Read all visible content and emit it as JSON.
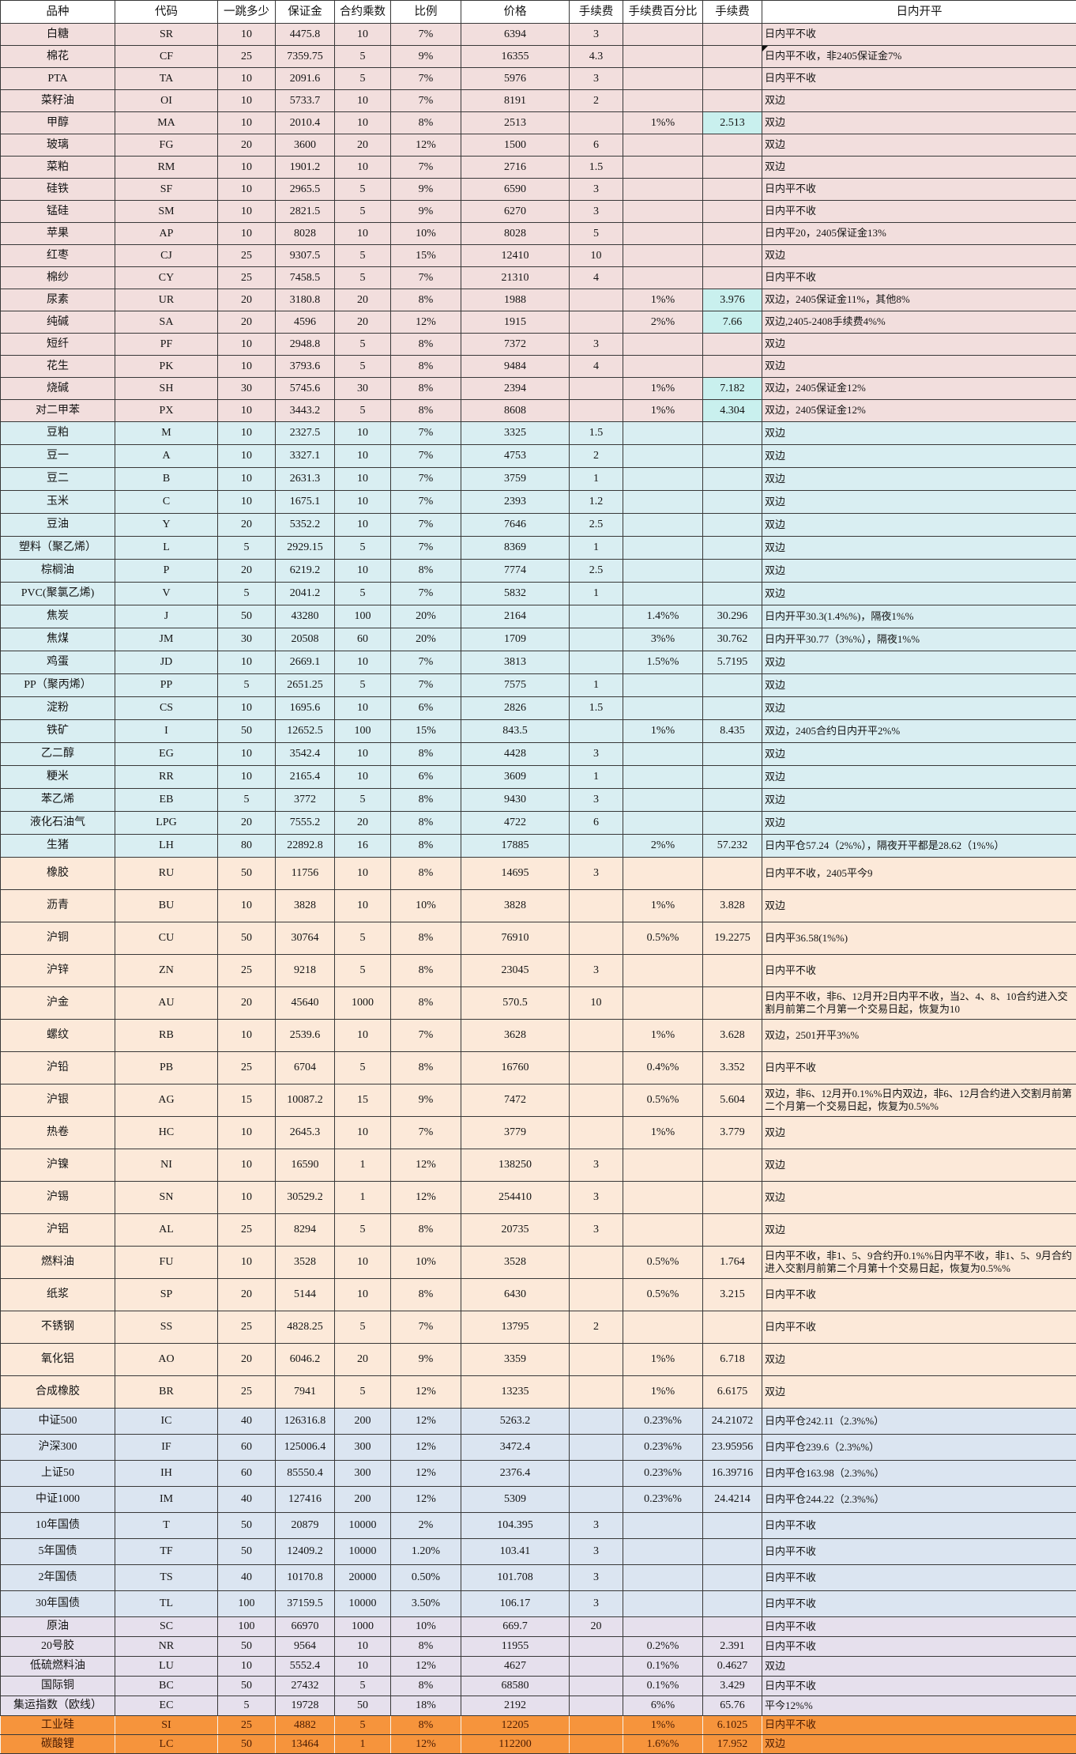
{
  "header": {
    "columns": [
      "品种",
      "代码",
      "一跳多少",
      "保证金",
      "合约乘数",
      "比例",
      "价格",
      "手续费",
      "手续费百分比",
      "手续费",
      "日内开平"
    ]
  },
  "groups": {
    "zce": {
      "bg": "#f2dedd",
      "text": "#141414"
    },
    "dce": {
      "bg": "#d9eef2",
      "text": "#141414"
    },
    "shfe": {
      "bg": "#fce9d9",
      "text": "#141414"
    },
    "cffex": {
      "bg": "#dbe5f1",
      "text": "#141414"
    },
    "ine": {
      "bg": "#e6e0ed",
      "text": "#141414"
    },
    "gfex": {
      "bg": "#f6943c",
      "text": "#4b1c03"
    }
  },
  "highlight_color": "#c9f0ee",
  "rows": [
    {
      "group": "zce",
      "name": "白糖",
      "code": "SR",
      "tick": "10",
      "margin": "4475.8",
      "mult": "10",
      "ratio": "7%",
      "price": "6394",
      "fee": "3",
      "feepct": "",
      "fee2": "",
      "note": "日内平不收"
    },
    {
      "group": "zce",
      "name": "棉花",
      "code": "CF",
      "tick": "25",
      "margin": "7359.75",
      "mult": "5",
      "ratio": "9%",
      "price": "16355",
      "fee": "4.3",
      "feepct": "",
      "fee2": "",
      "note": "日内平不收，非2405保证金7%",
      "marker": true
    },
    {
      "group": "zce",
      "name": "PTA",
      "code": "TA",
      "tick": "10",
      "margin": "2091.6",
      "mult": "5",
      "ratio": "7%",
      "price": "5976",
      "fee": "3",
      "feepct": "",
      "fee2": "",
      "note": "日内平不收"
    },
    {
      "group": "zce",
      "name": "菜籽油",
      "code": "OI",
      "tick": "10",
      "margin": "5733.7",
      "mult": "10",
      "ratio": "7%",
      "price": "8191",
      "fee": "2",
      "feepct": "",
      "fee2": "",
      "note": "双边"
    },
    {
      "group": "zce",
      "name": "甲醇",
      "code": "MA",
      "tick": "10",
      "margin": "2010.4",
      "mult": "10",
      "ratio": "8%",
      "price": "2513",
      "fee": "",
      "feepct": "1%%",
      "fee2": "2.513",
      "hl": true,
      "note": "双边"
    },
    {
      "group": "zce",
      "name": "玻璃",
      "code": "FG",
      "tick": "20",
      "margin": "3600",
      "mult": "20",
      "ratio": "12%",
      "price": "1500",
      "fee": "6",
      "feepct": "",
      "fee2": "",
      "note": "双边"
    },
    {
      "group": "zce",
      "name": "菜粕",
      "code": "RM",
      "tick": "10",
      "margin": "1901.2",
      "mult": "10",
      "ratio": "7%",
      "price": "2716",
      "fee": "1.5",
      "feepct": "",
      "fee2": "",
      "note": "双边"
    },
    {
      "group": "zce",
      "name": "硅铁",
      "code": "SF",
      "tick": "10",
      "margin": "2965.5",
      "mult": "5",
      "ratio": "9%",
      "price": "6590",
      "fee": "3",
      "feepct": "",
      "fee2": "",
      "note": "日内平不收"
    },
    {
      "group": "zce",
      "name": "锰硅",
      "code": "SM",
      "tick": "10",
      "margin": "2821.5",
      "mult": "5",
      "ratio": "9%",
      "price": "6270",
      "fee": "3",
      "feepct": "",
      "fee2": "",
      "note": "日内平不收"
    },
    {
      "group": "zce",
      "name": "苹果",
      "code": "AP",
      "tick": "10",
      "margin": "8028",
      "mult": "10",
      "ratio": "10%",
      "price": "8028",
      "fee": "5",
      "feepct": "",
      "fee2": "",
      "note": "日内平20，2405保证金13%"
    },
    {
      "group": "zce",
      "name": "红枣",
      "code": "CJ",
      "tick": "25",
      "margin": "9307.5",
      "mult": "5",
      "ratio": "15%",
      "price": "12410",
      "fee": "10",
      "feepct": "",
      "fee2": "",
      "note": "双边"
    },
    {
      "group": "zce",
      "name": "棉纱",
      "code": "CY",
      "tick": "25",
      "margin": "7458.5",
      "mult": "5",
      "ratio": "7%",
      "price": "21310",
      "fee": "4",
      "feepct": "",
      "fee2": "",
      "note": "日内平不收"
    },
    {
      "group": "zce",
      "name": "尿素",
      "code": "UR",
      "tick": "20",
      "margin": "3180.8",
      "mult": "20",
      "ratio": "8%",
      "price": "1988",
      "fee": "",
      "feepct": "1%%",
      "fee2": "3.976",
      "hl": true,
      "note": "双边，2405保证金11%，其他8%"
    },
    {
      "group": "zce",
      "name": "纯碱",
      "code": "SA",
      "tick": "20",
      "margin": "4596",
      "mult": "20",
      "ratio": "12%",
      "price": "1915",
      "fee": "",
      "feepct": "2%%",
      "fee2": "7.66",
      "hl": true,
      "note": "双边,2405-2408手续费4%%"
    },
    {
      "group": "zce",
      "name": "短纤",
      "code": "PF",
      "tick": "10",
      "margin": "2948.8",
      "mult": "5",
      "ratio": "8%",
      "price": "7372",
      "fee": "3",
      "feepct": "",
      "fee2": "",
      "note": "双边"
    },
    {
      "group": "zce",
      "name": "花生",
      "code": "PK",
      "tick": "10",
      "margin": "3793.6",
      "mult": "5",
      "ratio": "8%",
      "price": "9484",
      "fee": "4",
      "feepct": "",
      "fee2": "",
      "note": "双边"
    },
    {
      "group": "zce",
      "name": "烧碱",
      "code": "SH",
      "tick": "30",
      "margin": "5745.6",
      "mult": "30",
      "ratio": "8%",
      "price": "2394",
      "fee": "",
      "feepct": "1%%",
      "fee2": "7.182",
      "hl": true,
      "note": "双边，2405保证金12%"
    },
    {
      "group": "zce",
      "name": "对二甲苯",
      "code": "PX",
      "tick": "10",
      "margin": "3443.2",
      "mult": "5",
      "ratio": "8%",
      "price": "8608",
      "fee": "",
      "feepct": "1%%",
      "fee2": "4.304",
      "hl": true,
      "note": "双边，2405保证金12%"
    },
    {
      "group": "dce",
      "name": "豆粕",
      "code": "M",
      "tick": "10",
      "margin": "2327.5",
      "mult": "10",
      "ratio": "7%",
      "price": "3325",
      "fee": "1.5",
      "feepct": "",
      "fee2": "",
      "note": "双边"
    },
    {
      "group": "dce",
      "name": "豆一",
      "code": "A",
      "tick": "10",
      "margin": "3327.1",
      "mult": "10",
      "ratio": "7%",
      "price": "4753",
      "fee": "2",
      "feepct": "",
      "fee2": "",
      "note": "双边"
    },
    {
      "group": "dce",
      "name": "豆二",
      "code": "B",
      "tick": "10",
      "margin": "2631.3",
      "mult": "10",
      "ratio": "7%",
      "price": "3759",
      "fee": "1",
      "feepct": "",
      "fee2": "",
      "note": "双边"
    },
    {
      "group": "dce",
      "name": "玉米",
      "code": "C",
      "tick": "10",
      "margin": "1675.1",
      "mult": "10",
      "ratio": "7%",
      "price": "2393",
      "fee": "1.2",
      "feepct": "",
      "fee2": "",
      "note": "双边"
    },
    {
      "group": "dce",
      "name": "豆油",
      "code": "Y",
      "tick": "20",
      "margin": "5352.2",
      "mult": "10",
      "ratio": "7%",
      "price": "7646",
      "fee": "2.5",
      "feepct": "",
      "fee2": "",
      "note": "双边"
    },
    {
      "group": "dce",
      "name": "塑料（聚乙烯）",
      "code": "L",
      "tick": "5",
      "margin": "2929.15",
      "mult": "5",
      "ratio": "7%",
      "price": "8369",
      "fee": "1",
      "feepct": "",
      "fee2": "",
      "note": "双边"
    },
    {
      "group": "dce",
      "name": "棕榈油",
      "code": "P",
      "tick": "20",
      "margin": "6219.2",
      "mult": "10",
      "ratio": "8%",
      "price": "7774",
      "fee": "2.5",
      "feepct": "",
      "fee2": "",
      "note": "双边"
    },
    {
      "group": "dce",
      "name": "PVC(聚氯乙烯)",
      "code": "V",
      "tick": "5",
      "margin": "2041.2",
      "mult": "5",
      "ratio": "7%",
      "price": "5832",
      "fee": "1",
      "feepct": "",
      "fee2": "",
      "note": "双边"
    },
    {
      "group": "dce",
      "name": "焦炭",
      "code": "J",
      "tick": "50",
      "margin": "43280",
      "mult": "100",
      "ratio": "20%",
      "price": "2164",
      "fee": "",
      "feepct": "1.4%%",
      "fee2": "30.296",
      "note": "日内开平30.3(1.4%%)，隔夜1%%"
    },
    {
      "group": "dce",
      "name": "焦煤",
      "code": "JM",
      "tick": "30",
      "margin": "20508",
      "mult": "60",
      "ratio": "20%",
      "price": "1709",
      "fee": "",
      "feepct": "3%%",
      "fee2": "30.762",
      "note": "日内开平30.77（3%%），隔夜1%%"
    },
    {
      "group": "dce",
      "name": "鸡蛋",
      "code": "JD",
      "tick": "10",
      "margin": "2669.1",
      "mult": "10",
      "ratio": "7%",
      "price": "3813",
      "fee": "",
      "feepct": "1.5%%",
      "fee2": "5.7195",
      "note": "双边"
    },
    {
      "group": "dce",
      "name": "PP（聚丙烯）",
      "code": "PP",
      "tick": "5",
      "margin": "2651.25",
      "mult": "5",
      "ratio": "7%",
      "price": "7575",
      "fee": "1",
      "feepct": "",
      "fee2": "",
      "note": "双边"
    },
    {
      "group": "dce",
      "name": "淀粉",
      "code": "CS",
      "tick": "10",
      "margin": "1695.6",
      "mult": "10",
      "ratio": "6%",
      "price": "2826",
      "fee": "1.5",
      "feepct": "",
      "fee2": "",
      "note": "双边"
    },
    {
      "group": "dce",
      "name": "铁矿",
      "code": "I",
      "tick": "50",
      "margin": "12652.5",
      "mult": "100",
      "ratio": "15%",
      "price": "843.5",
      "fee": "",
      "feepct": "1%%",
      "fee2": "8.435",
      "note": "双边，2405合约日内开平2%%"
    },
    {
      "group": "dce",
      "name": "乙二醇",
      "code": "EG",
      "tick": "10",
      "margin": "3542.4",
      "mult": "10",
      "ratio": "8%",
      "price": "4428",
      "fee": "3",
      "feepct": "",
      "fee2": "",
      "note": "双边"
    },
    {
      "group": "dce",
      "name": "粳米",
      "code": "RR",
      "tick": "10",
      "margin": "2165.4",
      "mult": "10",
      "ratio": "6%",
      "price": "3609",
      "fee": "1",
      "feepct": "",
      "fee2": "",
      "note": "双边"
    },
    {
      "group": "dce",
      "name": "苯乙烯",
      "code": "EB",
      "tick": "5",
      "margin": "3772",
      "mult": "5",
      "ratio": "8%",
      "price": "9430",
      "fee": "3",
      "feepct": "",
      "fee2": "",
      "note": "双边"
    },
    {
      "group": "dce",
      "name": "液化石油气",
      "code": "LPG",
      "tick": "20",
      "margin": "7555.2",
      "mult": "20",
      "ratio": "8%",
      "price": "4722",
      "fee": "6",
      "feepct": "",
      "fee2": "",
      "note": "双边"
    },
    {
      "group": "dce",
      "name": "生猪",
      "code": "LH",
      "tick": "80",
      "margin": "22892.8",
      "mult": "16",
      "ratio": "8%",
      "price": "17885",
      "fee": "",
      "feepct": "2%%",
      "fee2": "57.232",
      "note": "日内平仓57.24（2%%），隔夜开平都是28.62（1%%）"
    },
    {
      "group": "shfe",
      "name": "橡胶",
      "code": "RU",
      "tick": "50",
      "margin": "11756",
      "mult": "10",
      "ratio": "8%",
      "price": "14695",
      "fee": "3",
      "feepct": "",
      "fee2": "",
      "note": "日内平不收，2405平今9"
    },
    {
      "group": "shfe",
      "name": "沥青",
      "code": "BU",
      "tick": "10",
      "margin": "3828",
      "mult": "10",
      "ratio": "10%",
      "price": "3828",
      "fee": "",
      "feepct": "1%%",
      "fee2": "3.828",
      "note": "双边"
    },
    {
      "group": "shfe",
      "name": "沪铜",
      "code": "CU",
      "tick": "50",
      "margin": "30764",
      "mult": "5",
      "ratio": "8%",
      "price": "76910",
      "fee": "",
      "feepct": "0.5%%",
      "fee2": "19.2275",
      "note": "日内平36.58(1%%)"
    },
    {
      "group": "shfe",
      "name": "沪锌",
      "code": "ZN",
      "tick": "25",
      "margin": "9218",
      "mult": "5",
      "ratio": "8%",
      "price": "23045",
      "fee": "3",
      "feepct": "",
      "fee2": "",
      "note": "日内平不收"
    },
    {
      "group": "shfe",
      "name": "沪金",
      "code": "AU",
      "tick": "20",
      "margin": "45640",
      "mult": "1000",
      "ratio": "8%",
      "price": "570.5",
      "fee": "10",
      "feepct": "",
      "fee2": "",
      "note": "日内平不收，非6、12月开2日内平不收，当2、4、8、10合约进入交割月前第二个月第一个交易日起，恢复为10"
    },
    {
      "group": "shfe",
      "name": "螺纹",
      "code": "RB",
      "tick": "10",
      "margin": "2539.6",
      "mult": "10",
      "ratio": "7%",
      "price": "3628",
      "fee": "",
      "feepct": "1%%",
      "fee2": "3.628",
      "note": "双边，2501开平3%%"
    },
    {
      "group": "shfe",
      "name": "沪铅",
      "code": "PB",
      "tick": "25",
      "margin": "6704",
      "mult": "5",
      "ratio": "8%",
      "price": "16760",
      "fee": "",
      "feepct": "0.4%%",
      "fee2": "3.352",
      "note": "日内平不收"
    },
    {
      "group": "shfe",
      "name": "沪银",
      "code": "AG",
      "tick": "15",
      "margin": "10087.2",
      "mult": "15",
      "ratio": "9%",
      "price": "7472",
      "fee": "",
      "feepct": "0.5%%",
      "fee2": "5.604",
      "note": "双边，非6、12月开0.1%%日内双边，非6、12月合约进入交割月前第二个月第一个交易日起，恢复为0.5%%"
    },
    {
      "group": "shfe",
      "name": "热卷",
      "code": "HC",
      "tick": "10",
      "margin": "2645.3",
      "mult": "10",
      "ratio": "7%",
      "price": "3779",
      "fee": "",
      "feepct": "1%%",
      "fee2": "3.779",
      "note": "双边"
    },
    {
      "group": "shfe",
      "name": "沪镍",
      "code": "NI",
      "tick": "10",
      "margin": "16590",
      "mult": "1",
      "ratio": "12%",
      "price": "138250",
      "fee": "3",
      "feepct": "",
      "fee2": "",
      "note": "双边"
    },
    {
      "group": "shfe",
      "name": "沪锡",
      "code": "SN",
      "tick": "10",
      "margin": "30529.2",
      "mult": "1",
      "ratio": "12%",
      "price": "254410",
      "fee": "3",
      "feepct": "",
      "fee2": "",
      "note": "双边"
    },
    {
      "group": "shfe",
      "name": "沪铝",
      "code": "AL",
      "tick": "25",
      "margin": "8294",
      "mult": "5",
      "ratio": "8%",
      "price": "20735",
      "fee": "3",
      "feepct": "",
      "fee2": "",
      "note": "双边"
    },
    {
      "group": "shfe",
      "name": "燃料油",
      "code": "FU",
      "tick": "10",
      "margin": "3528",
      "mult": "10",
      "ratio": "10%",
      "price": "3528",
      "fee": "",
      "feepct": "0.5%%",
      "fee2": "1.764",
      "note": "日内平不收，非1、5、9合约开0.1%%日内平不收，非1、5、9月合约进入交割月前第二个月第十个交易日起，恢复为0.5%%"
    },
    {
      "group": "shfe",
      "name": "纸浆",
      "code": "SP",
      "tick": "20",
      "margin": "5144",
      "mult": "10",
      "ratio": "8%",
      "price": "6430",
      "fee": "",
      "feepct": "0.5%%",
      "fee2": "3.215",
      "note": "日内平不收"
    },
    {
      "group": "shfe",
      "name": "不锈钢",
      "code": "SS",
      "tick": "25",
      "margin": "4828.25",
      "mult": "5",
      "ratio": "7%",
      "price": "13795",
      "fee": "2",
      "feepct": "",
      "fee2": "",
      "note": "日内平不收"
    },
    {
      "group": "shfe",
      "name": "氧化铝",
      "code": "AO",
      "tick": "20",
      "margin": "6046.2",
      "mult": "20",
      "ratio": "9%",
      "price": "3359",
      "fee": "",
      "feepct": "1%%",
      "fee2": "6.718",
      "note": "双边"
    },
    {
      "group": "shfe",
      "name": "合成橡胶",
      "code": "BR",
      "tick": "25",
      "margin": "7941",
      "mult": "5",
      "ratio": "12%",
      "price": "13235",
      "fee": "",
      "feepct": "1%%",
      "fee2": "6.6175",
      "note": "双边"
    },
    {
      "group": "cffex",
      "name": "中证500",
      "code": "IC",
      "tick": "40",
      "margin": "126316.8",
      "mult": "200",
      "ratio": "12%",
      "price": "5263.2",
      "fee": "",
      "feepct": "0.23%%",
      "fee2": "24.21072",
      "note": "日内平仓242.11（2.3%%）"
    },
    {
      "group": "cffex",
      "name": "沪深300",
      "code": "IF",
      "tick": "60",
      "margin": "125006.4",
      "mult": "300",
      "ratio": "12%",
      "price": "3472.4",
      "fee": "",
      "feepct": "0.23%%",
      "fee2": "23.95956",
      "note": "日内平仓239.6（2.3%%）"
    },
    {
      "group": "cffex",
      "name": "上证50",
      "code": "IH",
      "tick": "60",
      "margin": "85550.4",
      "mult": "300",
      "ratio": "12%",
      "price": "2376.4",
      "fee": "",
      "feepct": "0.23%%",
      "fee2": "16.39716",
      "note": "日内平仓163.98（2.3%%）"
    },
    {
      "group": "cffex",
      "name": "中证1000",
      "code": "IM",
      "tick": "40",
      "margin": "127416",
      "mult": "200",
      "ratio": "12%",
      "price": "5309",
      "fee": "",
      "feepct": "0.23%%",
      "fee2": "24.4214",
      "note": "日内平仓244.22（2.3%%）"
    },
    {
      "group": "cffex",
      "name": "10年国债",
      "code": "T",
      "tick": "50",
      "margin": "20879",
      "mult": "10000",
      "ratio": "2%",
      "price": "104.395",
      "fee": "3",
      "feepct": "",
      "fee2": "",
      "note": "日内平不收"
    },
    {
      "group": "cffex",
      "name": "5年国债",
      "code": "TF",
      "tick": "50",
      "margin": "12409.2",
      "mult": "10000",
      "ratio": "1.20%",
      "price": "103.41",
      "fee": "3",
      "feepct": "",
      "fee2": "",
      "note": "日内平不收"
    },
    {
      "group": "cffex",
      "name": "2年国债",
      "code": "TS",
      "tick": "40",
      "margin": "10170.8",
      "mult": "20000",
      "ratio": "0.50%",
      "price": "101.708",
      "fee": "3",
      "feepct": "",
      "fee2": "",
      "note": "日内平不收"
    },
    {
      "group": "cffex",
      "name": "30年国债",
      "code": "TL",
      "tick": "100",
      "margin": "37159.5",
      "mult": "10000",
      "ratio": "3.50%",
      "price": "106.17",
      "fee": "3",
      "feepct": "",
      "fee2": "",
      "note": "日内平不收"
    },
    {
      "group": "ine",
      "name": "原油",
      "code": "SC",
      "tick": "100",
      "margin": "66970",
      "mult": "1000",
      "ratio": "10%",
      "price": "669.7",
      "fee": "20",
      "feepct": "",
      "fee2": "",
      "note": "日内平不收"
    },
    {
      "group": "ine",
      "name": "20号胶",
      "code": "NR",
      "tick": "50",
      "margin": "9564",
      "mult": "10",
      "ratio": "8%",
      "price": "11955",
      "fee": "",
      "feepct": "0.2%%",
      "fee2": "2.391",
      "note": "日内平不收"
    },
    {
      "group": "ine",
      "name": "低硫燃料油",
      "code": "LU",
      "tick": "10",
      "margin": "5552.4",
      "mult": "10",
      "ratio": "12%",
      "price": "4627",
      "fee": "",
      "feepct": "0.1%%",
      "fee2": "0.4627",
      "note": "双边"
    },
    {
      "group": "ine",
      "name": "国际铜",
      "code": "BC",
      "tick": "50",
      "margin": "27432",
      "mult": "5",
      "ratio": "8%",
      "price": "68580",
      "fee": "",
      "feepct": "0.1%%",
      "fee2": "3.429",
      "note": "日内平不收"
    },
    {
      "group": "ine",
      "name": "集运指数（欧线）",
      "code": "EC",
      "tick": "5",
      "margin": "19728",
      "mult": "50",
      "ratio": "18%",
      "price": "2192",
      "fee": "",
      "feepct": "6%%",
      "fee2": "65.76",
      "note": "平今12%%"
    },
    {
      "group": "gfex",
      "name": "工业硅",
      "code": "SI",
      "tick": "25",
      "margin": "4882",
      "mult": "5",
      "ratio": "8%",
      "price": "12205",
      "fee": "",
      "feepct": "1%%",
      "fee2": "6.1025",
      "note": "日内平不收"
    },
    {
      "group": "gfex",
      "name": "碳酸锂",
      "code": "LC",
      "tick": "50",
      "margin": "13464",
      "mult": "1",
      "ratio": "12%",
      "price": "112200",
      "fee": "",
      "feepct": "1.6%%",
      "fee2": "17.952",
      "note": "双边"
    }
  ]
}
